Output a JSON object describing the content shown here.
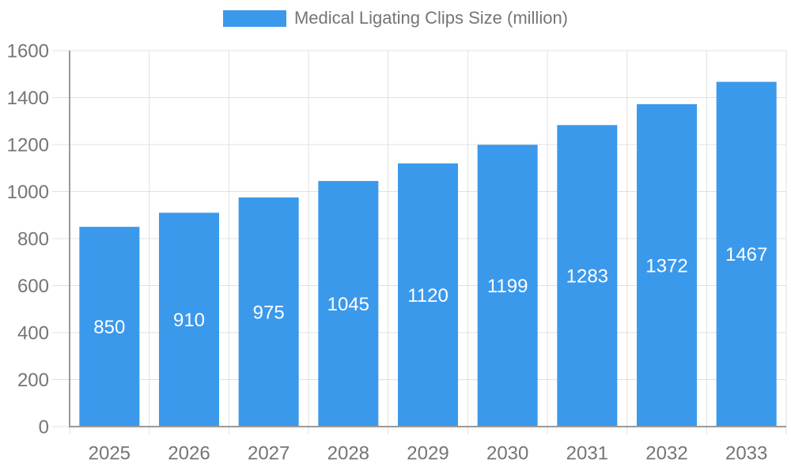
{
  "chart_data": {
    "type": "bar",
    "title": "Medical Ligating Clips Size (million)",
    "series_name": "Medical Ligating Clips Size (million)",
    "categories": [
      "2025",
      "2026",
      "2027",
      "2028",
      "2029",
      "2030",
      "2031",
      "2032",
      "2033"
    ],
    "values": [
      850,
      910,
      975,
      1045,
      1120,
      1199,
      1283,
      1372,
      1467
    ],
    "ylim": [
      0,
      1600
    ],
    "ytick_step": 200,
    "ytick_labels": [
      "0",
      "200",
      "400",
      "600",
      "800",
      "1000",
      "1200",
      "1400",
      "1600"
    ],
    "grid": "both",
    "legend_position": "top-center",
    "value_label_position": "inside-center"
  },
  "legend": {
    "label": "Medical Ligating Clips Size (million)"
  },
  "colors": {
    "bar": "#3B99EC",
    "grid": "#E0E0E0",
    "axis": "#9A9A9A",
    "tick_label": "#757575",
    "legend_text": "#757575",
    "value_label": "#FFFFFF",
    "background": "#FFFFFF"
  }
}
